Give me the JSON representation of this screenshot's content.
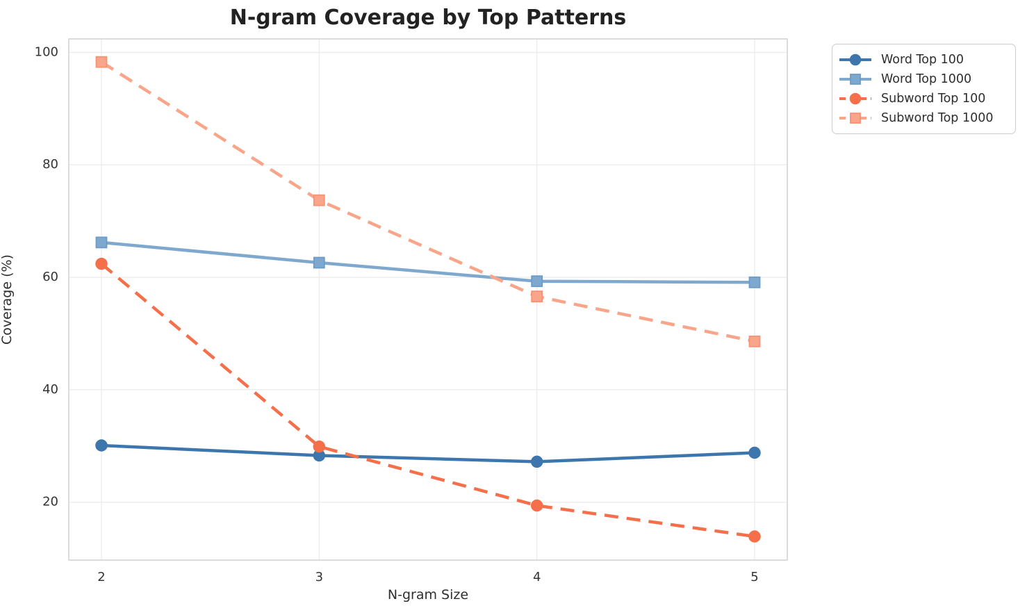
{
  "chart_data": {
    "type": "line",
    "title": "N-gram Coverage by Top Patterns",
    "xlabel": "N-gram Size",
    "ylabel": "Coverage (%)",
    "x": [
      2,
      3,
      4,
      5
    ],
    "series": [
      {
        "name": "Word Top 100",
        "values": [
          30.1,
          28.3,
          27.2,
          28.8
        ],
        "color": "#3d76ad",
        "edge": "#3d76ad",
        "marker": "circle",
        "line_style": "solid"
      },
      {
        "name": "Word Top 1000",
        "values": [
          66.2,
          62.6,
          59.3,
          59.1
        ],
        "color": "#7fa8cf",
        "edge": "#6b9cc9",
        "marker": "square",
        "line_style": "solid"
      },
      {
        "name": "Subword Top 100",
        "values": [
          62.4,
          29.9,
          19.4,
          13.9
        ],
        "color": "#f56f4a",
        "edge": "#f56f4a",
        "marker": "circle",
        "line_style": "dashed"
      },
      {
        "name": "Subword Top 1000",
        "values": [
          98.3,
          73.7,
          56.6,
          48.6
        ],
        "color": "#f9a589",
        "edge": "#f79273",
        "marker": "square",
        "line_style": "dashed"
      }
    ],
    "xticks": [
      2,
      3,
      4,
      5
    ],
    "yticks": [
      20,
      40,
      60,
      80,
      100
    ],
    "xlim": [
      1.85,
      5.15
    ],
    "ylim": [
      9.7,
      102.4
    ],
    "grid": true,
    "legend_position": "outside upper right",
    "colors": {
      "grid": "#ececec",
      "spine": "#d4d4d4",
      "tick_label": "#333333",
      "title_text": "#222222",
      "axis_label_text": "#2e2e2e",
      "background": "#ffffff"
    }
  }
}
